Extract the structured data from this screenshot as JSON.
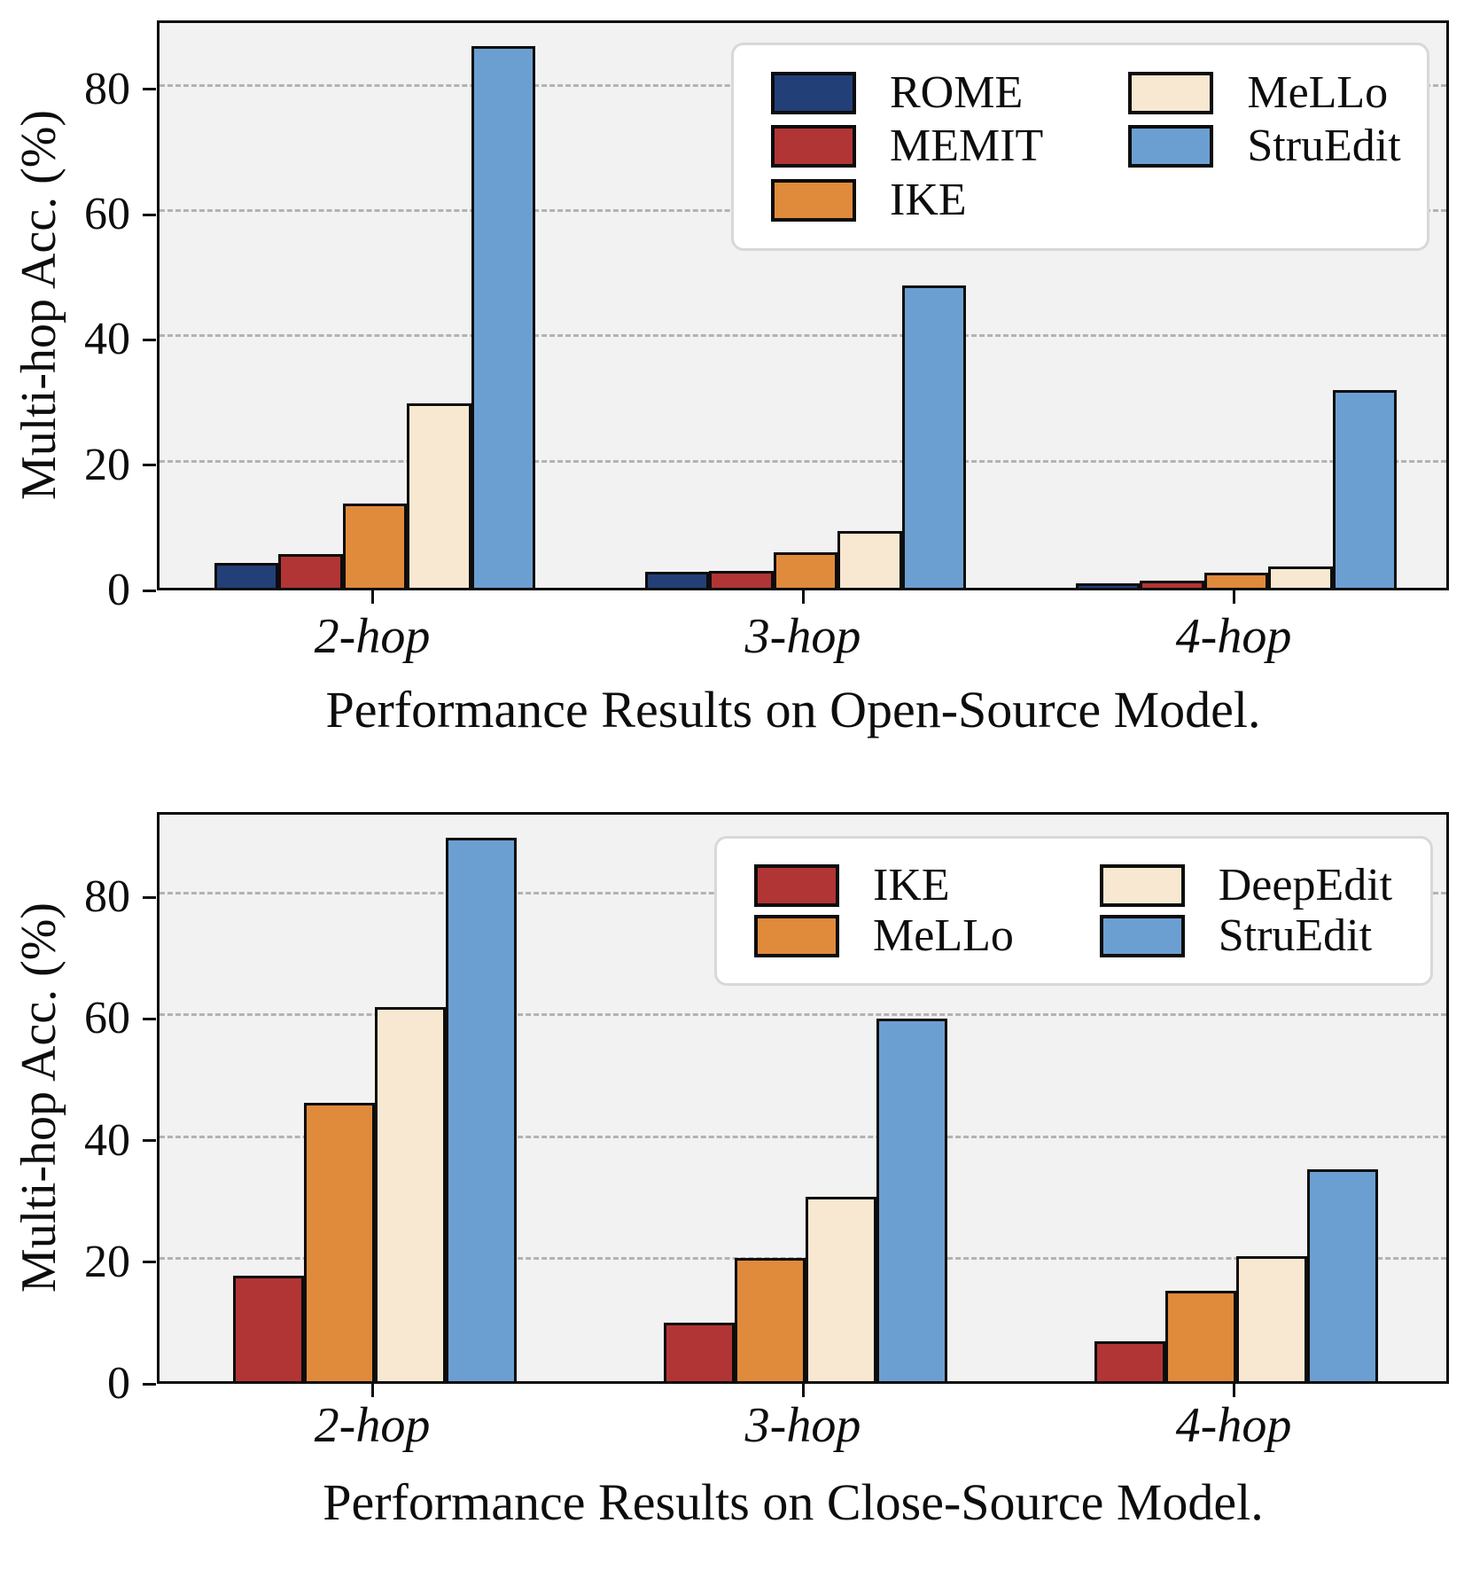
{
  "figure": {
    "background_color": "#ffffff",
    "plot_background_color": "#f2f2f2",
    "grid_color": "#b3b3b3",
    "bar_edge_color": "#0d0d0d",
    "legend_border_color": "#d8d8d8"
  },
  "chart_data": [
    {
      "type": "bar",
      "title": "",
      "xlabel": "Performance Results on Open-Source Model.",
      "ylabel": "Multi-hop Acc. (%)",
      "categories": [
        "2-hop",
        "3-hop",
        "4-hop"
      ],
      "yticks": [
        "0",
        "20",
        "40",
        "60",
        "80"
      ],
      "ytick_values": [
        0,
        20,
        40,
        60,
        80
      ],
      "ylim": [
        0,
        91
      ],
      "grid": "dashed-horizontal",
      "legend_position": "upper-right-inside",
      "legend_rows": 3,
      "series": [
        {
          "name": "ROME",
          "color": "#233f78",
          "values": [
            4.0,
            2.5,
            0.7
          ]
        },
        {
          "name": "MEMIT",
          "color": "#b23535",
          "values": [
            5.4,
            2.7,
            1.1
          ]
        },
        {
          "name": "IKE",
          "color": "#e08a3c",
          "values": [
            13.4,
            5.6,
            2.4
          ]
        },
        {
          "name": "MeLLo",
          "color": "#f8e8d1",
          "values": [
            29.5,
            9.1,
            3.4
          ]
        },
        {
          "name": "StruEdit",
          "color": "#6c9fd1",
          "values": [
            86.5,
            48.2,
            31.5
          ]
        }
      ]
    },
    {
      "type": "bar",
      "title": "",
      "xlabel": "Performance Results on Close-Source Model.",
      "ylabel": "Multi-hop Acc. (%)",
      "categories": [
        "2-hop",
        "3-hop",
        "4-hop"
      ],
      "yticks": [
        "0",
        "20",
        "40",
        "60",
        "80"
      ],
      "ytick_values": [
        0,
        20,
        40,
        60,
        80
      ],
      "ylim": [
        0,
        94
      ],
      "grid": "dashed-horizontal",
      "legend_position": "upper-right-inside",
      "legend_rows": 2,
      "series": [
        {
          "name": "IKE",
          "color": "#b23535",
          "values": [
            17.3,
            9.6,
            6.6
          ]
        },
        {
          "name": "MeLLo",
          "color": "#e08a3c",
          "values": [
            45.8,
            20.3,
            14.8
          ]
        },
        {
          "name": "DeepEdit",
          "color": "#f8e8d1",
          "values": [
            61.5,
            30.3,
            20.6
          ]
        },
        {
          "name": "StruEdit",
          "color": "#6c9fd1",
          "values": [
            89.3,
            59.6,
            34.8
          ]
        }
      ]
    }
  ]
}
